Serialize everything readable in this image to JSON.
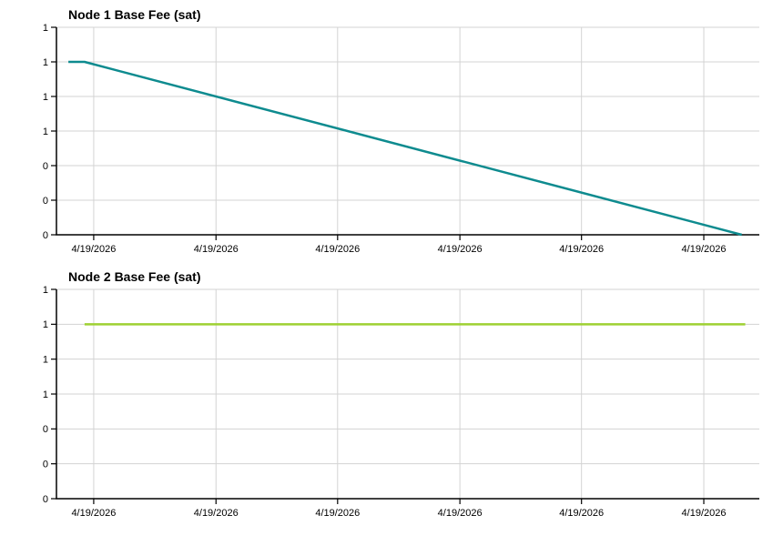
{
  "page": {
    "background": "#ffffff",
    "grid_color": "#d3d3d3",
    "axis_color": "#000000",
    "text_color": "#000000"
  },
  "chart_data": [
    {
      "type": "line",
      "title": "Node 1 Base Fee (sat)",
      "xlabel": "",
      "ylabel": "",
      "ylim": [
        0,
        1.2
      ],
      "grid": true,
      "legend_position": "none",
      "x_tick_labels": [
        "4/19/2026",
        "4/19/2026",
        "4/19/2026",
        "4/19/2026",
        "4/19/2026",
        "4/19/2026"
      ],
      "y_ticks": {
        "values": [
          1.2,
          1.0,
          0.8,
          0.6,
          0.4,
          0.2,
          0
        ],
        "labels": [
          "1",
          "1",
          "1",
          "1",
          "0",
          "0",
          "0"
        ]
      },
      "series": [
        {
          "name": "Node 1 Base Fee (sat)",
          "color": "#0e8b8f",
          "x_frac": [
            0.017,
            0.04,
            0.975
          ],
          "values": [
            1.0,
            1.0,
            0.0
          ]
        }
      ]
    },
    {
      "type": "line",
      "title": "Node 2 Base Fee (sat)",
      "xlabel": "",
      "ylabel": "",
      "ylim": [
        0,
        1.2
      ],
      "grid": true,
      "legend_position": "none",
      "x_tick_labels": [
        "4/19/2026",
        "4/19/2026",
        "4/19/2026",
        "4/19/2026",
        "4/19/2026",
        "4/19/2026"
      ],
      "y_ticks": {
        "values": [
          1.2,
          1.0,
          0.8,
          0.6,
          0.4,
          0.2,
          0
        ],
        "labels": [
          "1",
          "1",
          "1",
          "1",
          "0",
          "0",
          "0"
        ]
      },
      "series": [
        {
          "name": "Node 2 Base Fee (sat)",
          "color": "#9ed133",
          "x_frac": [
            0.04,
            0.98
          ],
          "values": [
            1.0,
            1.0
          ]
        }
      ]
    }
  ]
}
